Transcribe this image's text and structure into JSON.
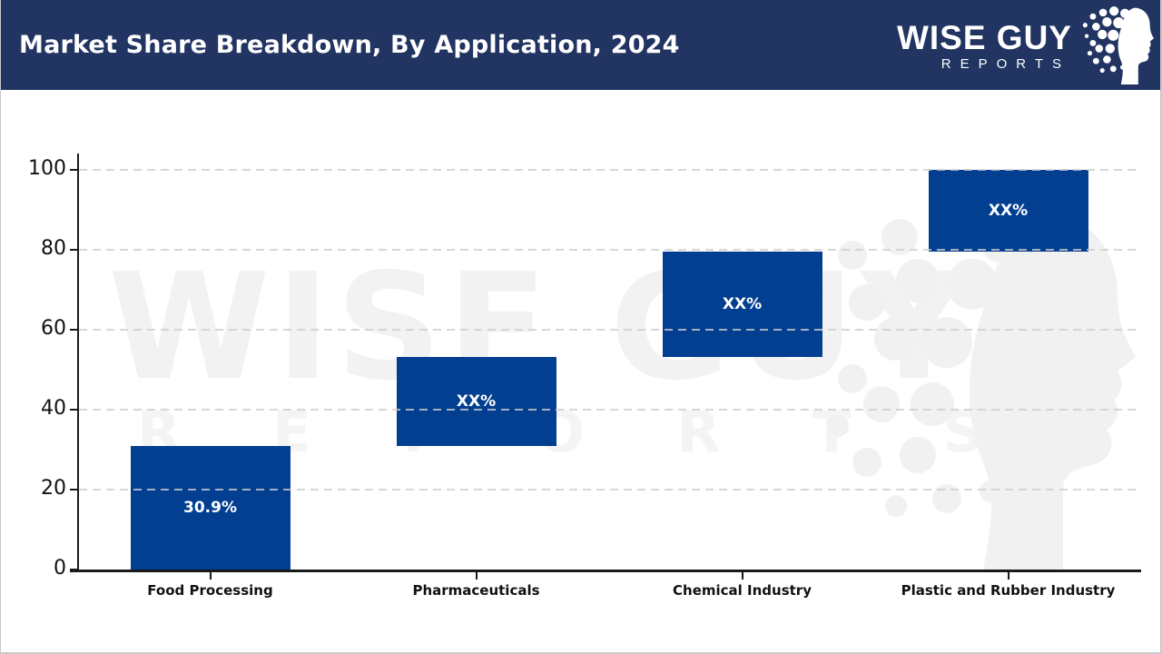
{
  "header": {
    "title": "Market Share Breakdown, By Application, 2024"
  },
  "logo": {
    "name_top": "WISE GUY",
    "name_bottom": "REPORTS"
  },
  "watermark": {
    "text_top": "WISE GUY",
    "text_bottom": "R E P O R T S"
  },
  "colors": {
    "header_bg": "#213462",
    "bar_blue": "#033f90",
    "grid_gray": "#cdcdcd",
    "watermark_gray": "#f2f2f2"
  },
  "chart_data": {
    "type": "bar",
    "variant": "waterfall",
    "title": "Market Share Breakdown, By Application, 2024",
    "categories": [
      "Food Processing",
      "Pharmaceuticals",
      "Chemical Industry",
      "Plastic and Rubber Industry"
    ],
    "bars": [
      {
        "category": "Food Processing",
        "start": 0,
        "end": 30.9,
        "label": "30.9%"
      },
      {
        "category": "Pharmaceuticals",
        "start": 30.9,
        "end": 53.2,
        "label": "XX%"
      },
      {
        "category": "Chemical Industry",
        "start": 53.2,
        "end": 79.6,
        "label": "XX%"
      },
      {
        "category": "Plastic and Rubber Industry",
        "start": 79.6,
        "end": 100,
        "label": "XX%"
      }
    ],
    "xlabel": "",
    "ylabel": "",
    "ylim": [
      0,
      100
    ],
    "yticks": [
      0,
      20,
      40,
      60,
      80,
      100
    ],
    "grid": "horizontal-dashed",
    "grid_on_top_of_bars": true,
    "legend": "none"
  }
}
